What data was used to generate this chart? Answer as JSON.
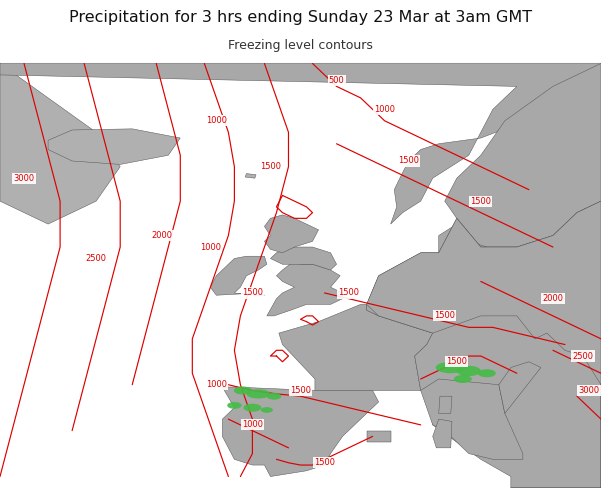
{
  "title": "Precipitation for 3 hrs ending Sunday 23 Mar at 3am GMT",
  "subtitle": "Freezing level contours",
  "title_fontsize": 11.5,
  "subtitle_fontsize": 9,
  "title_color": "#111111",
  "subtitle_color": "#333333",
  "bg_white": "#ffffff",
  "ocean_color": "#c8d4e8",
  "land_color": "#a8a8a8",
  "land_edge": "#555555",
  "contour_color": "#dd0000",
  "contour_lw": 0.85,
  "label_fontsize": 6.0,
  "green_precip": "#44bb44",
  "xlim": [
    -28,
    22
  ],
  "ylim": [
    35,
    72
  ]
}
